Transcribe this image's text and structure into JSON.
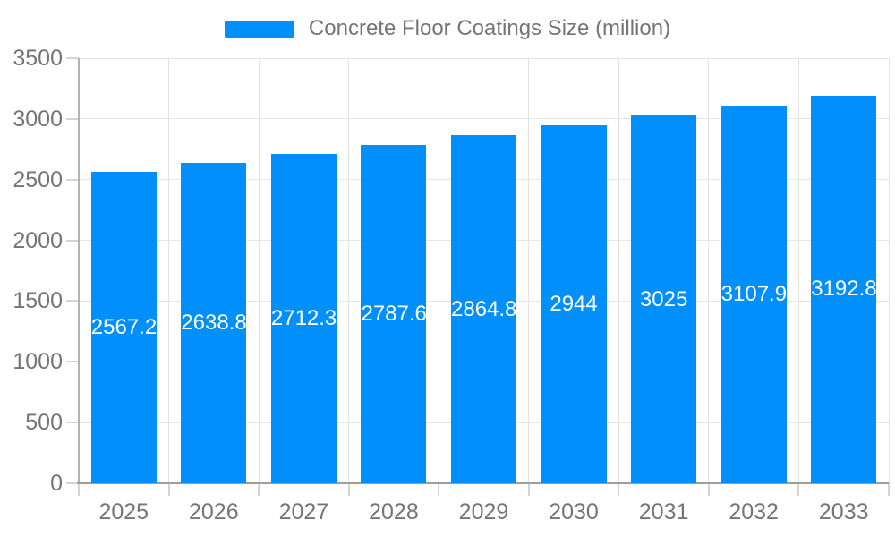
{
  "legend": {
    "items": [
      {
        "label": "Concrete Floor Coatings Size (million)",
        "color": "#008FFB"
      }
    ],
    "position": "top"
  },
  "chart_data": {
    "type": "bar",
    "title": "Concrete Floor Coatings Size (million)",
    "series_name": "Concrete Floor Coatings Size (million)",
    "categories": [
      "2025",
      "2026",
      "2027",
      "2028",
      "2029",
      "2030",
      "2031",
      "2032",
      "2033"
    ],
    "values": [
      2567.2,
      2638.8,
      2712.3,
      2787.6,
      2864.8,
      2944,
      3025,
      3107.9,
      3192.8
    ],
    "value_labels": [
      "2567.2",
      "2638.8",
      "2712.3",
      "2787.6",
      "2864.8",
      "2944",
      "3025",
      "3107.9",
      "3192.8"
    ],
    "xlabel": "",
    "ylabel": "",
    "ylim": [
      0,
      3500
    ],
    "yticks": [
      0,
      500,
      1000,
      1500,
      2000,
      2500,
      3000,
      3500
    ],
    "grid": true,
    "legend_position": "top",
    "bar_color": "#008FFB",
    "value_label_color": "#ffffff",
    "axis_label_color": "#757575",
    "grid_color": "#e6e6e6"
  }
}
